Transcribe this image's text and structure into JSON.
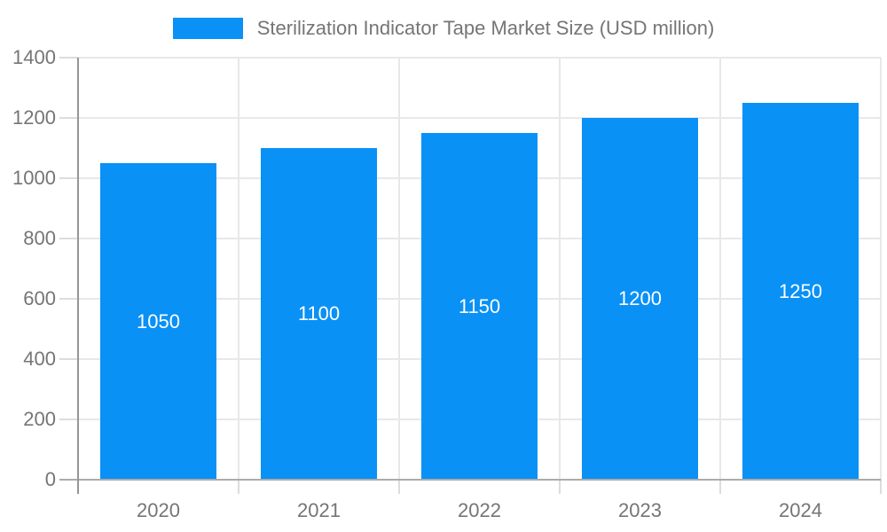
{
  "chart_data": {
    "type": "bar",
    "title": "Sterilization Indicator Tape Market Size (USD million)",
    "categories": [
      "2020",
      "2021",
      "2022",
      "2023",
      "2024"
    ],
    "values": [
      1050,
      1100,
      1150,
      1200,
      1250
    ],
    "series": [
      {
        "name": "Sterilization Indicator Tape Market Size (USD million)",
        "values": [
          1050,
          1100,
          1150,
          1200,
          1250
        ]
      }
    ],
    "xlabel": "",
    "ylabel": "",
    "ylim": [
      0,
      1400
    ],
    "ytick_step": 200,
    "yticks": [
      0,
      200,
      400,
      600,
      800,
      1000,
      1200,
      1400
    ],
    "grid": true,
    "legend_position": "top",
    "data_labels_position": "inside-center"
  },
  "legend": {
    "label": "Sterilization Indicator Tape Market Size (USD million)"
  },
  "colors": {
    "bar": "#0991f6",
    "grid": "#e8e8e8",
    "tick": "#dcdcdc",
    "axis_y": "#969696",
    "axis_x": "#ababab",
    "axis_text": "#757575",
    "data_label": "#ffffff",
    "background": "#ffffff"
  }
}
